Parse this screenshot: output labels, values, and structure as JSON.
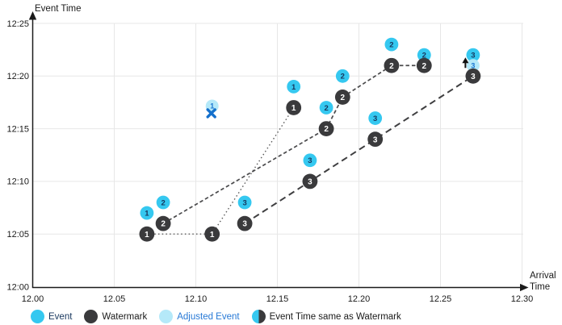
{
  "colors": {
    "event": "#35C8F0",
    "watermark": "#3A3A3C",
    "adjusted_event": "#B5E9F9",
    "event_number": "#17365D",
    "watermark_number": "#FFFFFF",
    "adjusted_number": "#1B76D1",
    "x_mark": "#1470CC",
    "arrow": "#111111",
    "axis": "#1A1A1A",
    "gridline": "#E7E7E7",
    "line_dotted": "#5A5A5A",
    "line_dashed": "#4A4A4C",
    "line_longdash": "#3F3F41",
    "legend_event_text": "#17365D",
    "legend_adjusted_text": "#2779D6",
    "legend_default_text": "#1A1A1A"
  },
  "chart_data": {
    "type": "scatter",
    "title": "",
    "ylabel": "Event Time",
    "xlabel_lines": [
      "Arrival",
      "Time"
    ],
    "grid": true,
    "x_axis": {
      "min": 12.0,
      "max": 12.3,
      "tick_step": 0.05,
      "tick_labels": [
        "12.00",
        "12.05",
        "12.10",
        "12.15",
        "12.20",
        "12.25",
        "12.30"
      ]
    },
    "y_axis": {
      "min": 0,
      "max": 25,
      "tick_step": 5,
      "tick_labels": [
        "12:00",
        "12:05",
        "12:10",
        "12:15",
        "12:20",
        "12:25"
      ]
    },
    "events": [
      {
        "label": "1",
        "arrival": 12.07,
        "event_time": "12:07",
        "y": 7
      },
      {
        "label": "2",
        "arrival": 12.08,
        "event_time": "12:08",
        "y": 8
      },
      {
        "label": "3",
        "arrival": 12.13,
        "event_time": "12:08",
        "y": 8
      },
      {
        "label": "1",
        "arrival": 12.16,
        "event_time": "12:19",
        "y": 19
      },
      {
        "label": "3",
        "arrival": 12.17,
        "event_time": "12:12",
        "y": 12
      },
      {
        "label": "2",
        "arrival": 12.18,
        "event_time": "12:17",
        "y": 17
      },
      {
        "label": "2",
        "arrival": 12.19,
        "event_time": "12:20",
        "y": 20
      },
      {
        "label": "3",
        "arrival": 12.21,
        "event_time": "12:16",
        "y": 16
      },
      {
        "label": "2",
        "arrival": 12.22,
        "event_time": "12:23",
        "y": 23
      },
      {
        "label": "2",
        "arrival": 12.24,
        "event_time": "12:22",
        "y": 22
      },
      {
        "label": "3",
        "arrival": 12.27,
        "event_time": "12:22",
        "y": 22
      }
    ],
    "watermarks": [
      {
        "label": "1",
        "arrival": 12.07,
        "event_time": "12:05",
        "y": 5
      },
      {
        "label": "2",
        "arrival": 12.08,
        "event_time": "12:06",
        "y": 6
      },
      {
        "label": "1",
        "arrival": 12.11,
        "event_time": "12:05",
        "y": 5
      },
      {
        "label": "3",
        "arrival": 12.13,
        "event_time": "12:06",
        "y": 6
      },
      {
        "label": "1",
        "arrival": 12.16,
        "event_time": "12:17",
        "y": 17
      },
      {
        "label": "3",
        "arrival": 12.17,
        "event_time": "12:10",
        "y": 10
      },
      {
        "label": "2",
        "arrival": 12.18,
        "event_time": "12:15",
        "y": 15
      },
      {
        "label": "2",
        "arrival": 12.19,
        "event_time": "12:18",
        "y": 18
      },
      {
        "label": "3",
        "arrival": 12.21,
        "event_time": "12:14",
        "y": 14
      },
      {
        "label": "2",
        "arrival": 12.22,
        "event_time": "12:21",
        "y": 21
      },
      {
        "label": "2",
        "arrival": 12.24,
        "event_time": "12:21",
        "y": 21
      },
      {
        "label": "3",
        "arrival": 12.27,
        "event_time": "12:20",
        "y": 20
      }
    ],
    "adjusted_events": [
      {
        "label": "1",
        "arrival": 12.11,
        "event_time": "12:17",
        "y": 17,
        "marker": "x-cross"
      },
      {
        "label": "3",
        "arrival": 12.27,
        "event_time": "12:21",
        "y": 21,
        "marker": "up-arrow"
      }
    ],
    "watermark_lines": [
      {
        "style": "dotted",
        "points": [
          [
            12.07,
            5
          ],
          [
            12.11,
            5
          ],
          [
            12.16,
            17
          ]
        ]
      },
      {
        "style": "dashed",
        "points": [
          [
            12.08,
            6
          ],
          [
            12.18,
            15
          ],
          [
            12.19,
            18
          ],
          [
            12.22,
            21
          ],
          [
            12.24,
            21
          ]
        ]
      },
      {
        "style": "longdash",
        "points": [
          [
            12.13,
            6
          ],
          [
            12.17,
            10
          ],
          [
            12.21,
            14
          ],
          [
            12.27,
            20
          ]
        ]
      }
    ]
  },
  "legend": {
    "items": [
      {
        "label": "Event",
        "marker": "event"
      },
      {
        "label": "Watermark",
        "marker": "watermark"
      },
      {
        "label": "Adjusted Event",
        "marker": "adjusted"
      },
      {
        "label": "Event Time same as Watermark",
        "marker": "half"
      }
    ]
  }
}
